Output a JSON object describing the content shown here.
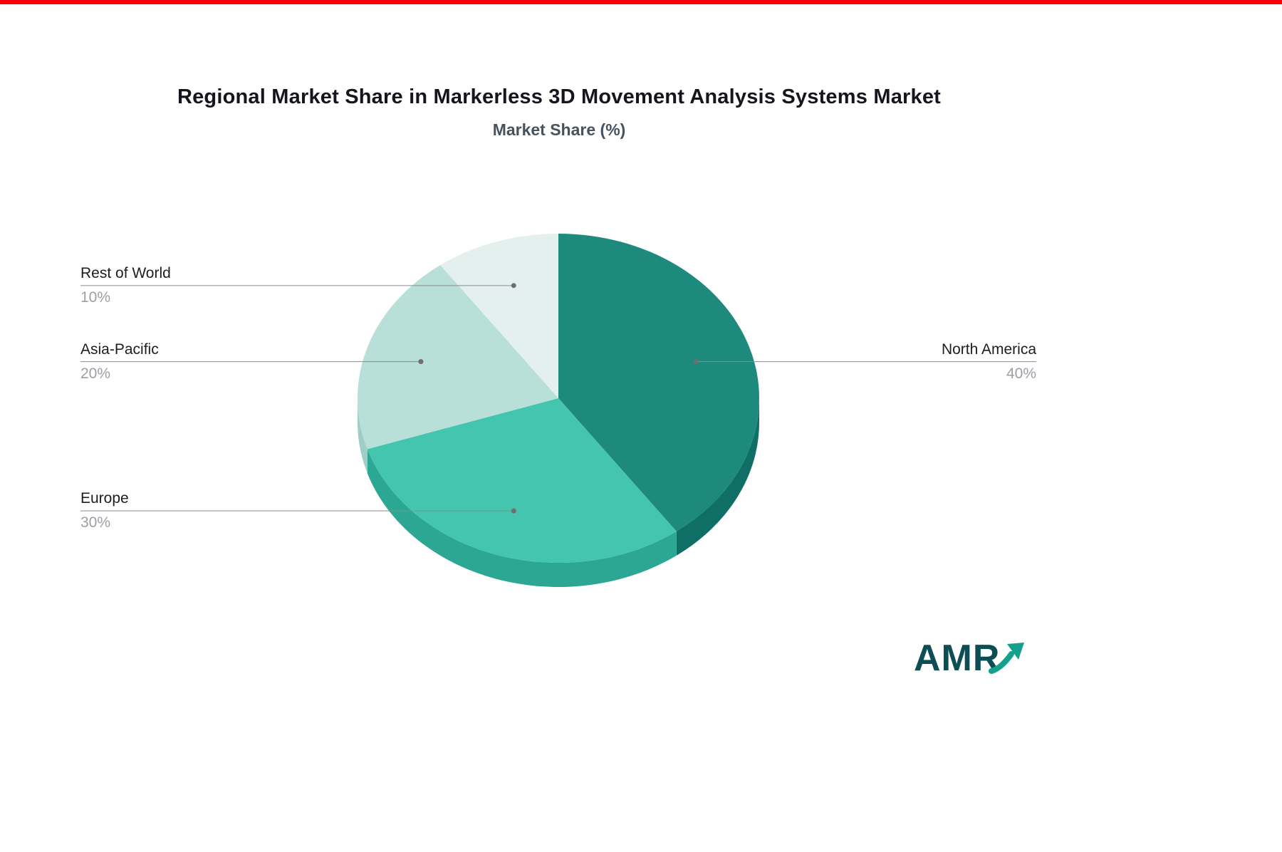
{
  "page": {
    "title": "Regional Market Share in Markerless 3D Movement Analysis Systems Market",
    "subtitle": "Market Share (%)"
  },
  "chart_data": {
    "type": "pie",
    "title": "Regional Market Share in Markerless 3D Movement Analysis Systems Market",
    "subtitle": "Market Share (%)",
    "unit": "%",
    "start_angle_deg": 0,
    "direction": "clockwise",
    "effect": "3d-extruded",
    "legend_position": "callout-labels",
    "slices": [
      {
        "label": "North America",
        "value": 40,
        "display": "40%",
        "color": "#1e8a7e",
        "side_color": "#0f6f67",
        "label_side": "right"
      },
      {
        "label": "Europe",
        "value": 30,
        "display": "30%",
        "color": "#44c5b0",
        "side_color": "#2ca794",
        "label_side": "left"
      },
      {
        "label": "Asia-Pacific",
        "value": 20,
        "display": "20%",
        "color": "#b8dfd8",
        "side_color": "#a0cec6",
        "label_side": "left"
      },
      {
        "label": "Rest of World",
        "value": 10,
        "display": "10%",
        "color": "#e4f0ee",
        "side_color": "#cde4e0",
        "label_side": "left"
      }
    ],
    "callout_line_color": "#8c8c8c",
    "callout_dot_color": "#6e6e6e"
  },
  "logo": {
    "text": "AMR"
  }
}
